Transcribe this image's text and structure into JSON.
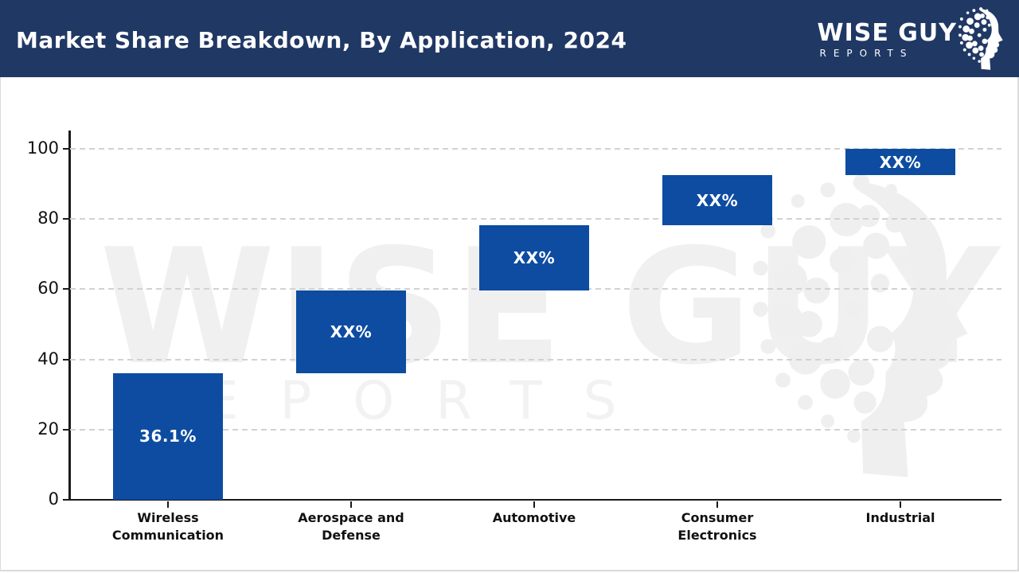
{
  "header": {
    "title": "Market Share Breakdown, By Application, 2024",
    "logo": {
      "line1": "WISE GUY",
      "line2": "REPORTS"
    }
  },
  "watermark": {
    "line1": "WISE GUY",
    "line2": "REPORTS"
  },
  "chart_data": {
    "type": "bar",
    "subtype": "waterfall",
    "title": "Market Share Breakdown, By Application, 2024",
    "categories": [
      "Wireless Communication",
      "Aerospace and Defense",
      "Automotive",
      "Consumer Electronics",
      "Industrial"
    ],
    "segments": [
      {
        "category": "Wireless Communication",
        "display": "Wireless\nCommunication",
        "start": 0,
        "end": 36.1,
        "label": "36.1%"
      },
      {
        "category": "Aerospace and Defense",
        "display": "Aerospace and\nDefense",
        "start": 36.1,
        "end": 59.6,
        "label": "XX%"
      },
      {
        "category": "Automotive",
        "display": "Automotive",
        "start": 59.6,
        "end": 78.2,
        "label": "XX%"
      },
      {
        "category": "Consumer Electronics",
        "display": "Consumer\nElectronics",
        "start": 78.2,
        "end": 92.5,
        "label": "XX%"
      },
      {
        "category": "Industrial",
        "display": "Industrial",
        "start": 92.5,
        "end": 100,
        "label": "XX%"
      }
    ],
    "xlabel": "",
    "ylabel": "",
    "ylim": [
      0,
      100
    ],
    "yticks": [
      0,
      20,
      40,
      60,
      80,
      100
    ],
    "grid": "horizontal-dashed",
    "legend": "none",
    "bar_color": "#0d4ca1",
    "value_label_color": "#ffffff"
  },
  "colors": {
    "header_bg": "#203864",
    "bar": "#0d4ca1",
    "axis": "#1a1a1a",
    "gridline": "#d2d2d2",
    "watermark": "#f0f0f0"
  }
}
